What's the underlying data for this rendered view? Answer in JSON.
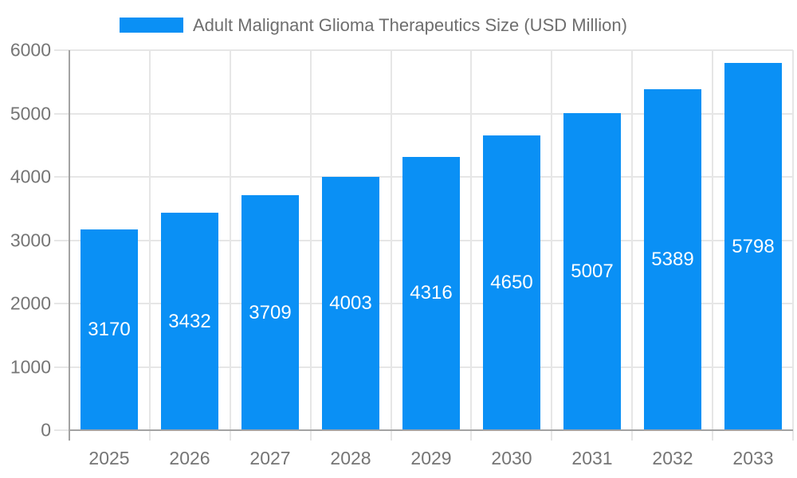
{
  "chart_data": {
    "type": "bar",
    "title": "Adult Malignant Glioma Therapeutics Size (USD Million)",
    "categories": [
      "2025",
      "2026",
      "2027",
      "2028",
      "2029",
      "2030",
      "2031",
      "2032",
      "2033"
    ],
    "values": [
      3170,
      3432,
      3709,
      4003,
      4316,
      4650,
      5007,
      5389,
      5798
    ],
    "xlabel": "",
    "ylabel": "",
    "ylim": [
      0,
      6000
    ],
    "yticks": [
      0,
      1000,
      2000,
      3000,
      4000,
      5000,
      6000
    ],
    "grid": true,
    "legend_position": "top",
    "data_labels": "inside-center",
    "colors": {
      "bar": "#0a90f5",
      "grid": "#e6e6e6",
      "axis": "#a3a3a3",
      "axis_text": "#757575",
      "legend_text": "#6e6e6e",
      "bar_label_text": "#ffffff",
      "background": "#ffffff"
    }
  }
}
